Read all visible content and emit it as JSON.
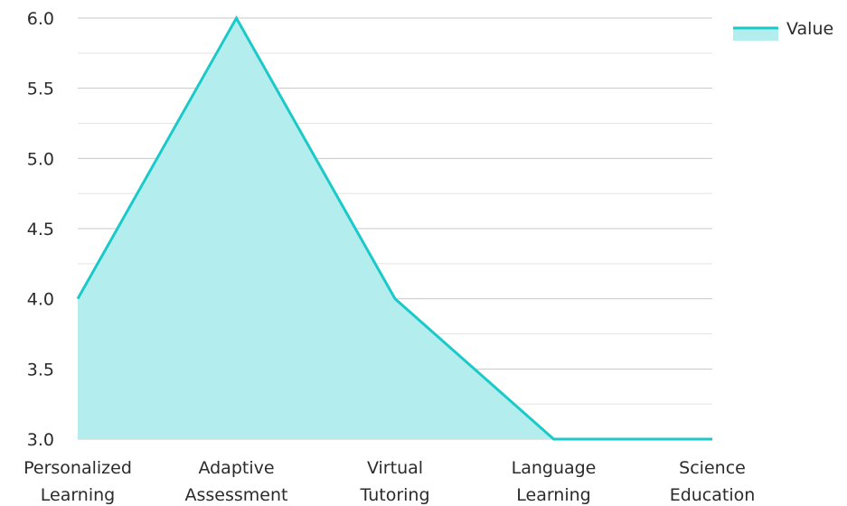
{
  "chart_data": {
    "type": "area",
    "categories": [
      [
        "Personalized",
        "Learning"
      ],
      [
        "Adaptive",
        "Assessment"
      ],
      [
        "Virtual",
        "Tutoring"
      ],
      [
        "Language",
        "Learning"
      ],
      [
        "Science",
        "Education"
      ]
    ],
    "series": [
      {
        "name": "Value",
        "values": [
          4.0,
          6.0,
          4.0,
          3.0,
          3.0
        ]
      }
    ],
    "ylim": [
      3.0,
      6.0
    ],
    "y_ticks": [
      "3.0",
      "3.5",
      "4.0",
      "4.5",
      "5.0",
      "5.5",
      "6.0"
    ],
    "y_tick_values": [
      3.0,
      3.5,
      4.0,
      4.5,
      5.0,
      5.5,
      6.0
    ],
    "minor_grid_step": 0.25,
    "grid": true,
    "legend_position": "top-right",
    "colors": {
      "line": "#1cc9c9",
      "fill": "#b3eded",
      "grid": "#c8c8c8",
      "grid_minor": "#e4e4e4",
      "text": "#2b2b2b"
    }
  }
}
